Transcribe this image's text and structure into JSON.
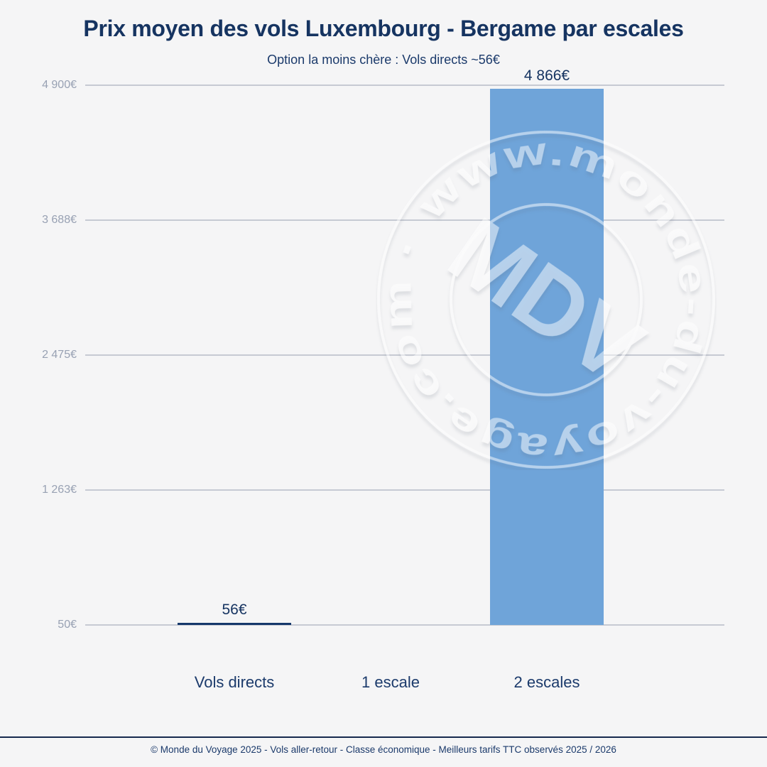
{
  "header": {
    "title": "Prix moyen des vols Luxembourg - Bergame par escales",
    "subtitle": "Option la moins chère : Vols directs ~56€"
  },
  "chart_data": {
    "type": "bar",
    "title": "Prix moyen des vols Luxembourg - Bergame par escales",
    "subtitle": "Option la moins chère : Vols directs ~56€",
    "categories": [
      "Vols directs",
      "1 escale",
      "2 escales"
    ],
    "values": [
      56,
      null,
      4866
    ],
    "value_labels": [
      "56€",
      null,
      "4 866€"
    ],
    "y_ticks": [
      "4 900€",
      "3 688€",
      "2 475€",
      "1 263€",
      "50€"
    ],
    "y_tick_values": [
      4900,
      3688,
      2475,
      1263,
      50
    ],
    "ylim": [
      50,
      4900
    ],
    "xlabel": "",
    "ylabel": "",
    "grid": true,
    "legend": "none",
    "bar_colors": [
      "#16386b",
      null,
      "#6fa4d9"
    ],
    "grid_color": "#c6cad3",
    "tick_color": "#98a1b3",
    "label_color": "#163461"
  },
  "watermark": {
    "ring_text": "www.monde-du-voyage.com ·",
    "center_text": "MDV"
  },
  "footer": {
    "text": "© Monde du Voyage 2025 - Vols aller-retour - Classe économique - Meilleurs tarifs TTC observés 2025 / 2026"
  }
}
